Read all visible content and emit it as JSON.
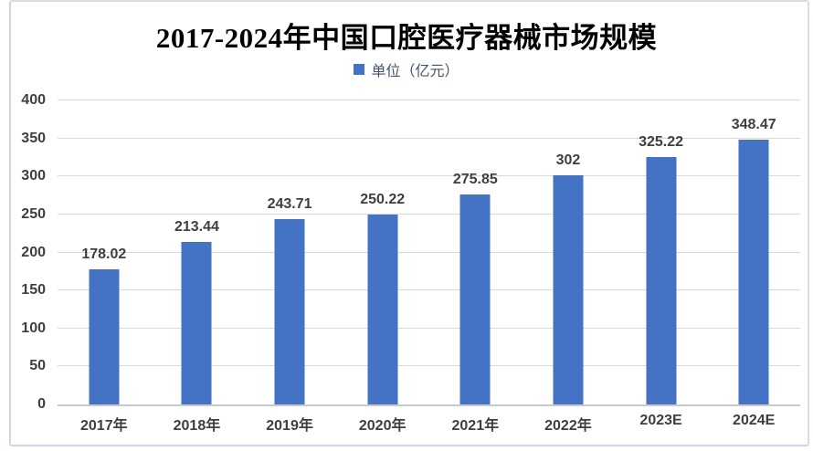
{
  "chart_data": {
    "type": "bar",
    "title": "2017-2024年中国口腔医疗器械市场规模",
    "legend": "单位（亿元）",
    "legend_position": "top",
    "categories": [
      "2017年",
      "2018年",
      "2019年",
      "2020年",
      "2021年",
      "2022年",
      "2023E",
      "2024E"
    ],
    "values": [
      178.02,
      213.44,
      243.71,
      250.22,
      275.85,
      302,
      325.22,
      348.47
    ],
    "value_labels": [
      "178.02",
      "213.44",
      "243.71",
      "250.22",
      "275.85",
      "302",
      "325.22",
      "348.47"
    ],
    "xlabel": "",
    "ylabel": "",
    "ylim": [
      0,
      400
    ],
    "ytick_interval": 50,
    "yticks": [
      400,
      350,
      300,
      250,
      200,
      150,
      100,
      50,
      0
    ],
    "grid": true,
    "colors": {
      "bar": "#4472C4",
      "legend_swatch": "#4472C4",
      "legend_text": "#44546A",
      "title_text": "#000000",
      "axis_text": "#3f3f3f",
      "gridline": "#d9d9d9",
      "axis_line": "#c9c9c9"
    }
  }
}
